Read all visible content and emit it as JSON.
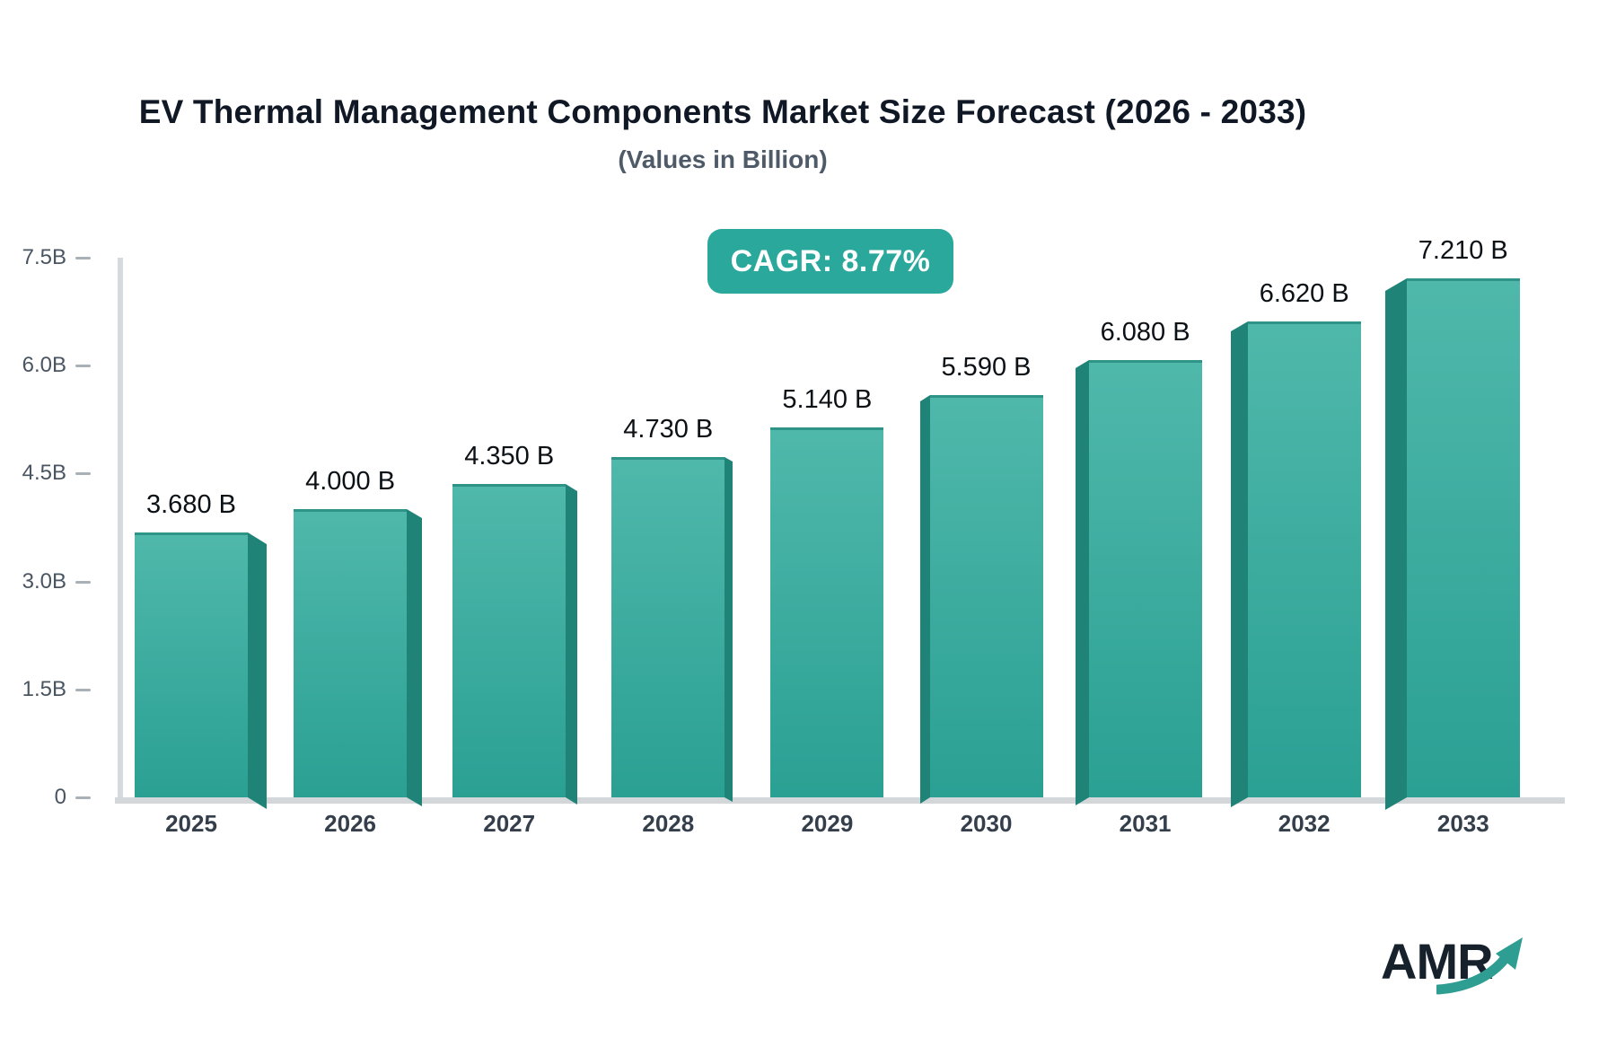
{
  "header": {
    "title": "EV Thermal Management Components Market Size Forecast (2026 - 2033)",
    "subtitle": "(Values in Billion)"
  },
  "badge": {
    "label": "CAGR: 8.77%",
    "background_color": "#29A89B",
    "text_color": "#ffffff"
  },
  "logo": {
    "text": "AMR",
    "text_color": "#17212C",
    "arrow_color": "#2E9E93"
  },
  "chart_data": {
    "type": "bar",
    "title": "EV Thermal Management Components Market Size Forecast (2026 - 2033)",
    "subtitle": "(Values in Billion)",
    "cagr_label": "CAGR: 8.77%",
    "categories": [
      "2025",
      "2026",
      "2027",
      "2028",
      "2029",
      "2030",
      "2031",
      "2032",
      "2033"
    ],
    "values": [
      3.68,
      4.0,
      4.35,
      4.73,
      5.14,
      5.59,
      6.08,
      6.62,
      7.21
    ],
    "value_labels": [
      "3.680 B",
      "4.000 B",
      "4.350 B",
      "4.730 B",
      "5.140 B",
      "5.590 B",
      "6.080 B",
      "6.620 B",
      "7.210 B"
    ],
    "xlabel": "",
    "ylabel": "",
    "ylim": [
      0,
      7.5
    ],
    "yticks": [
      {
        "value": 0,
        "label": "0"
      },
      {
        "value": 1.5,
        "label": "1.5B"
      },
      {
        "value": 3.0,
        "label": "3.0B"
      },
      {
        "value": 4.5,
        "label": "4.5B"
      },
      {
        "value": 6.0,
        "label": "6.0B"
      },
      {
        "value": 7.5,
        "label": "7.5B"
      }
    ],
    "grid": false,
    "legend": null,
    "bar_colors": {
      "face_top": "#4FB8AB",
      "face_bottom": "#2AA093",
      "face_edge": "#2F9488",
      "side": "#1F8477"
    }
  }
}
